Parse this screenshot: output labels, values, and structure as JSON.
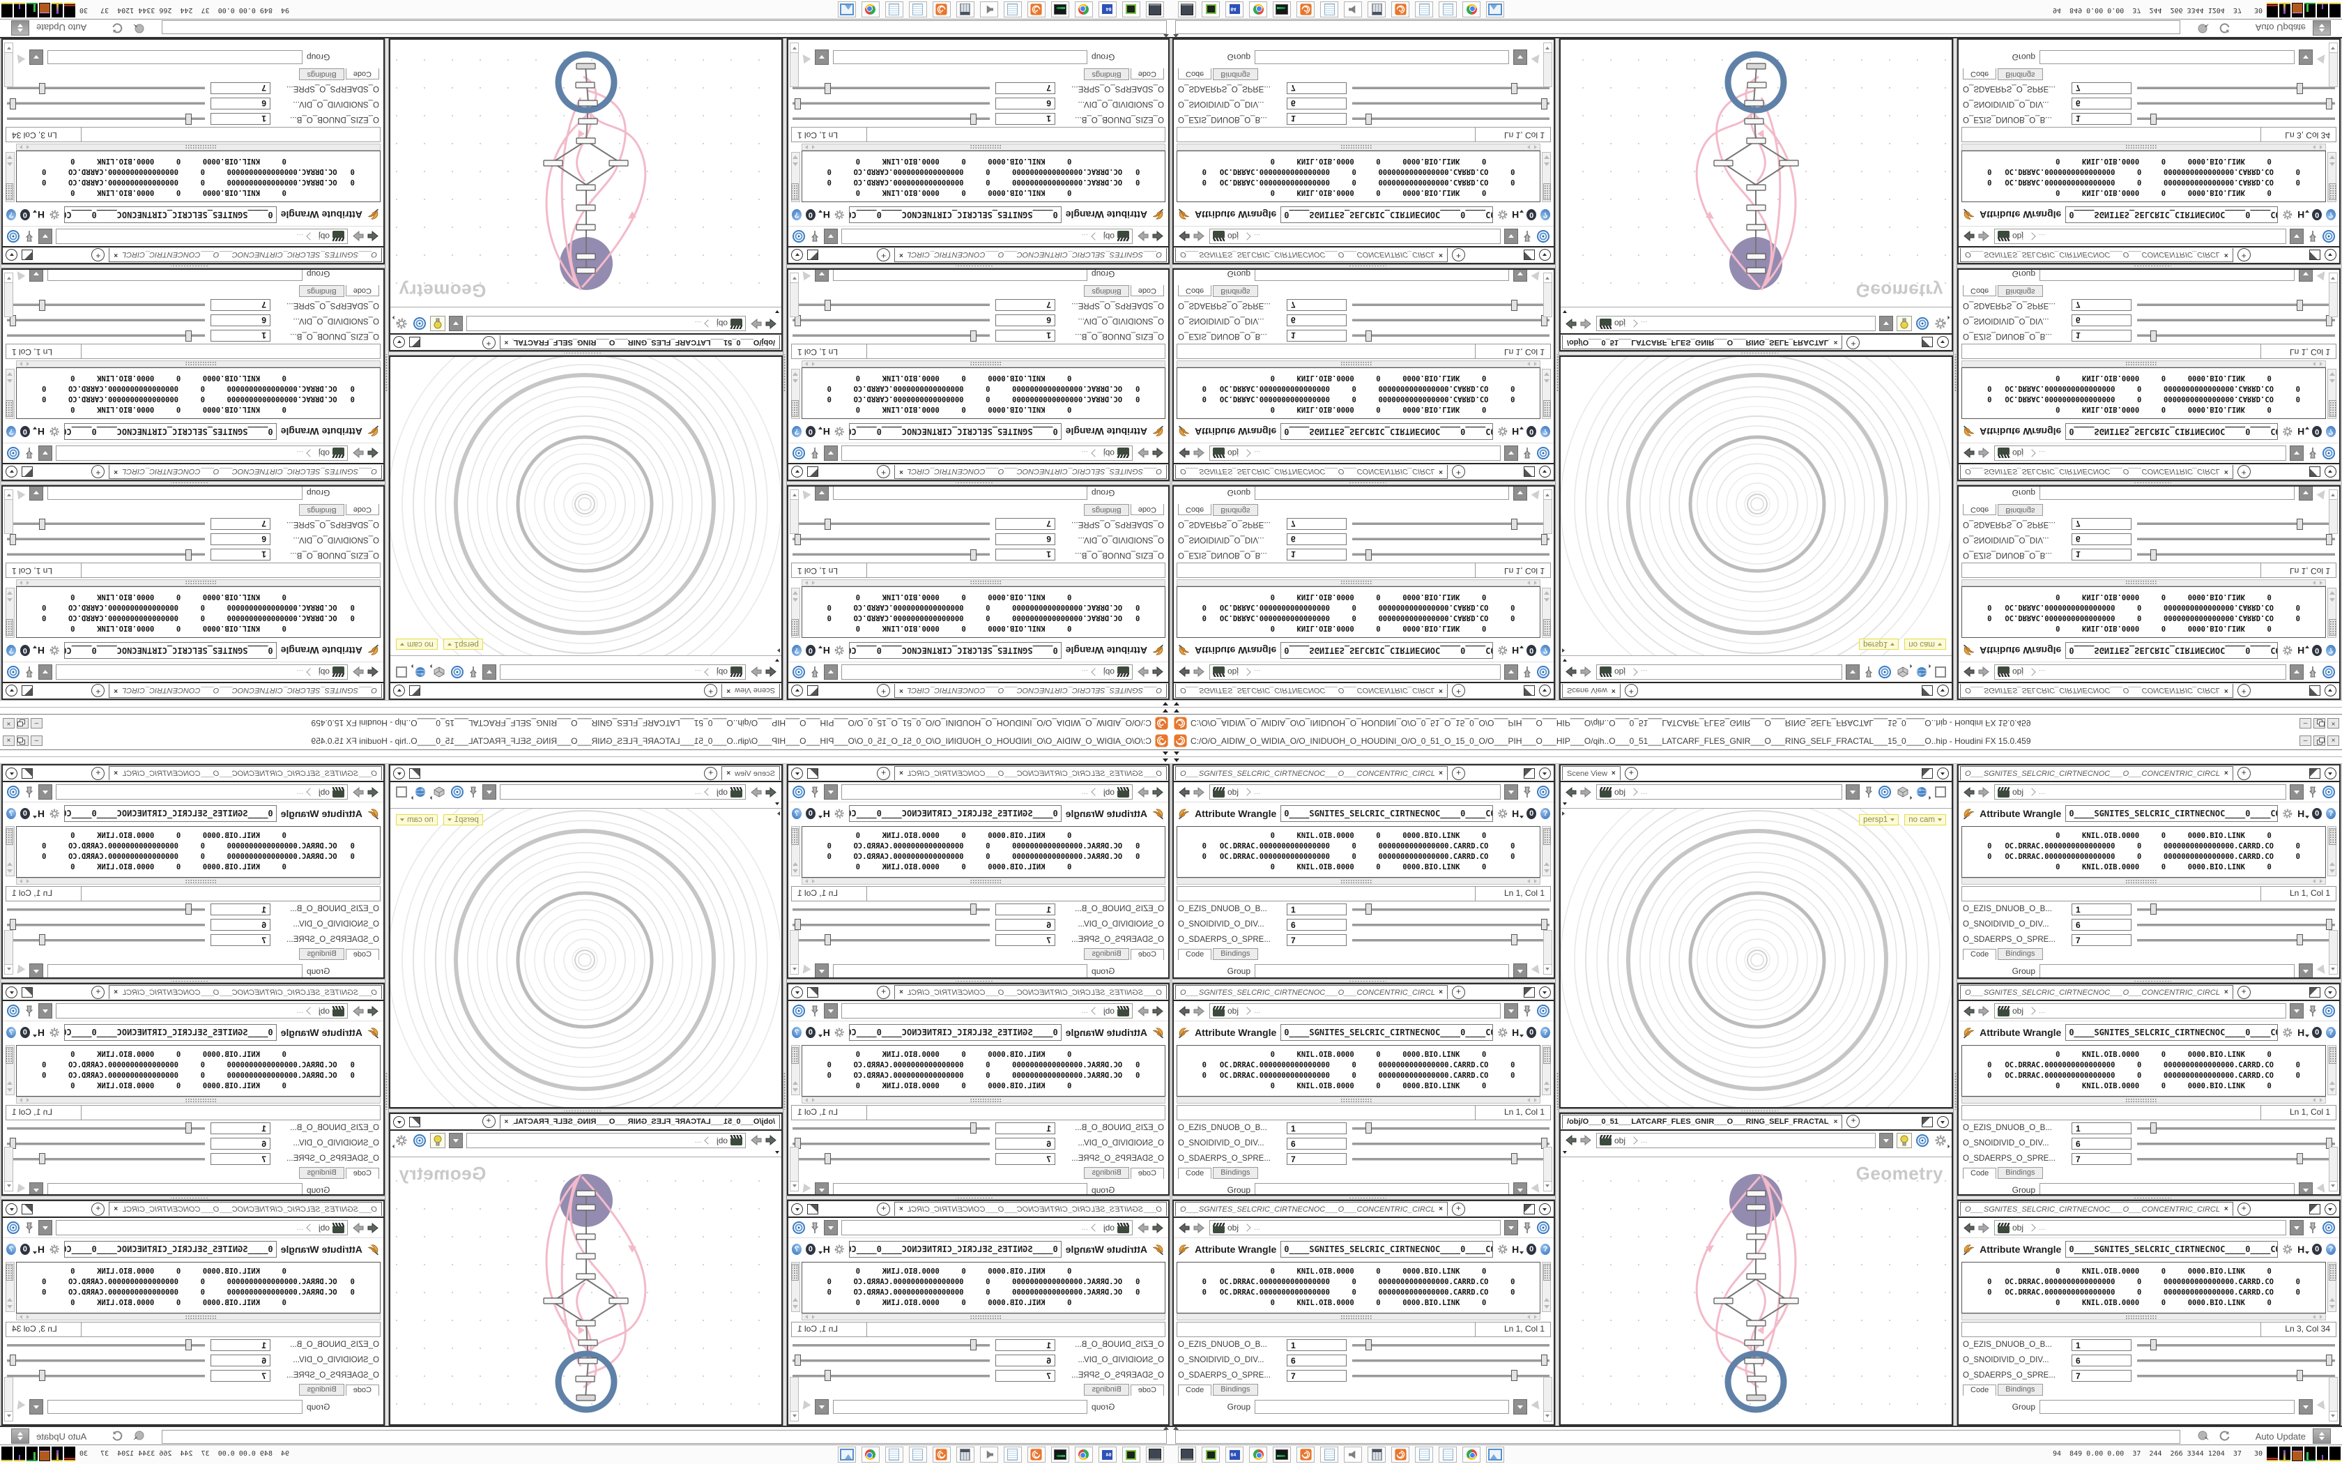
{
  "window": {
    "title": "C:/O/O_AIDIW_O_WIDIA_O/O_INIDUOH_O_HOUDINI_O/O_0_51_O_15_0_O/O___PIH___O___HIP___O/qih..O___0_51___LATCARF_FLES_GNIR___O___RING_SELF_FRACTAL___15_0____O..hip - Houdini FX 15.0.459",
    "minimize": "–",
    "close": "×"
  },
  "wrangle_pane": {
    "tab": "O___SGNITES_SELCRIC_CIRTNECNOC___O___CONCENTRIC_CIRCLES_SETINGS___O",
    "tab_close": "×",
    "tab_add": "+",
    "breadcrumb": {
      "root": "obj",
      "more": "..."
    },
    "header": {
      "label": "Attribute Wrangle",
      "name": "0____SGNITES_SELCRIC_CIRTNECNOC____0____CONCENT",
      "h": "H"
    },
    "code": [
      "         0     KNIL.OIB.0000     0     0000.BIO.LINK     0",
      "0   OC.DRRAC.0000000000000000     0     0000000000000000.CARRD.CO     0",
      "0   OC.DRRAC.0000000000000000     0     0000000000000000.CARRD.CO     0",
      "         0     KNIL.OIB.0000     0     0000.BIO.LINK     0"
    ],
    "ln": "Ln 1, Col 1",
    "ln_alt": "Ln 3, Col 34",
    "params": [
      {
        "label": "O_EZIS_DNUOB_O_B...",
        "value": "1",
        "slider": 0.08
      },
      {
        "label": "O_SNOIDIVID_O_DIV...",
        "value": "6",
        "slider": 0.97
      },
      {
        "label": "O_SDAERPS_O_SPRE...",
        "value": "7",
        "slider": 0.82
      }
    ],
    "tabs": {
      "code": "Code",
      "bindings": "Bindings"
    },
    "group_label": "Group"
  },
  "scene_pane": {
    "tab": "Scene View",
    "tab_close": "×",
    "tab_add": "+",
    "breadcrumb": {
      "root": "obj",
      "more": "..."
    },
    "persp_chip": "persp1",
    "cam_chip": "no cam"
  },
  "network_pane": {
    "tab": "/obj/O___0_51___LATCARF_FLES_GNIR___O___RING_SELF_FRACTAL___15_0_...",
    "tab_close": "×",
    "tab_add": "+",
    "breadcrumb": {
      "root": "obj",
      "more": "..."
    },
    "watermark": "Geometry"
  },
  "statusbar": {
    "auto_update": "Auto Update"
  },
  "taskbar": {
    "floppy_label": "64",
    "tray_numbers": "94  849 0.00 0.00  37  244  266 3344 1204  37   30",
    "icons": [
      "system-monitor",
      "print-device",
      "floppy-64",
      "chrome",
      "task-manager",
      "houdini",
      "notepad",
      "volume",
      "calculator",
      "houdini",
      "notepad",
      "notepad",
      "chrome",
      "image-viewer"
    ]
  },
  "colors": {
    "houdini_orange": "#e8762c",
    "node_purple": "#948bb0",
    "node_ring_blue": "#5f81a8",
    "wire_pink": "#f3bac9",
    "chip_yellow_border": "#e3dd45",
    "chip_yellow_bg": "#fcfadb",
    "watermark_gray": "#c9c9c9"
  }
}
